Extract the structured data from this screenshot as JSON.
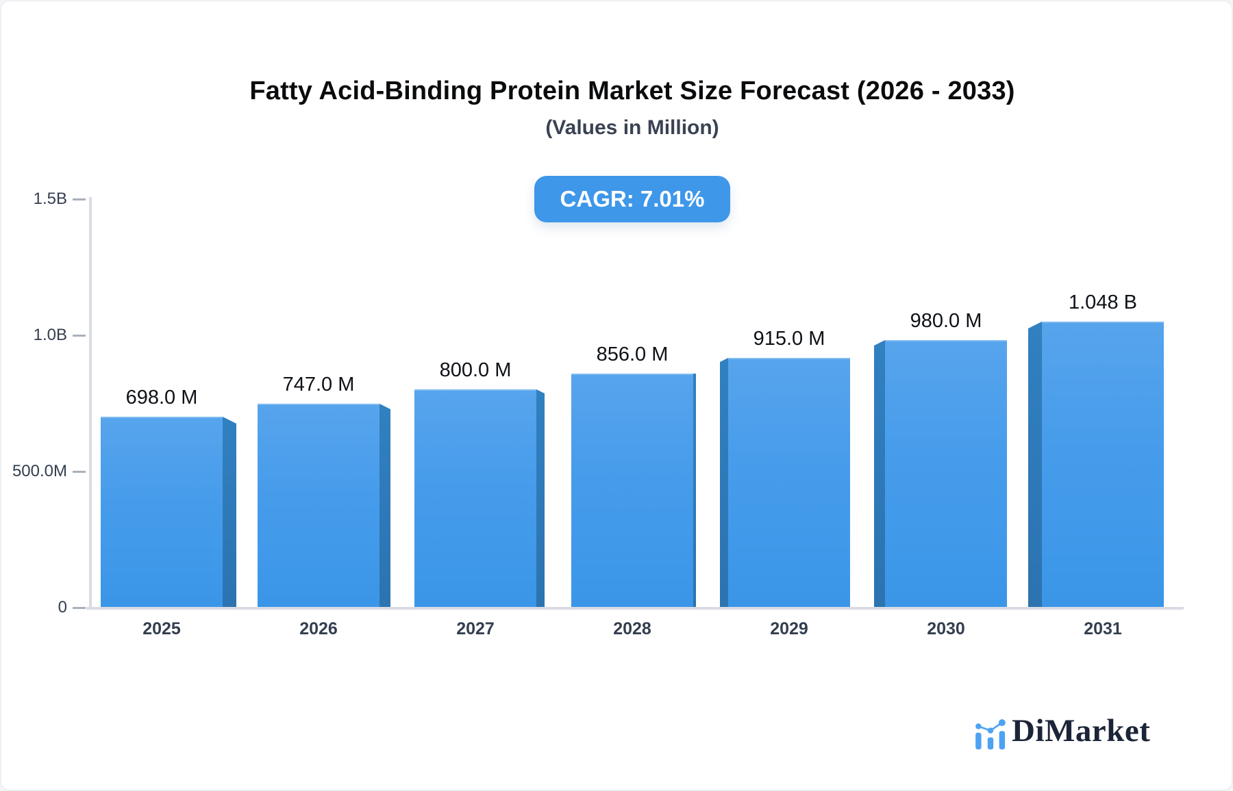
{
  "header": {
    "title": "Fatty Acid-Binding Protein Market Size Forecast (2026 - 2033)",
    "subtitle": "(Values in Million)",
    "cagr_label": "CAGR: 7.01%"
  },
  "chart_data": {
    "type": "bar",
    "title": "Fatty Acid-Binding Protein Market Size Forecast (2026 - 2033)",
    "subtitle": "(Values in Million)",
    "cagr_percent": "7.01%",
    "unit": "Million USD",
    "categories": [
      "2025",
      "2026",
      "2027",
      "2028",
      "2029",
      "2030",
      "2031"
    ],
    "values": [
      698,
      747,
      800,
      856,
      915,
      980,
      1048
    ],
    "value_labels": [
      "698.0 M",
      "747.0 M",
      "800.0 M",
      "856.0 M",
      "915.0 M",
      "980.0 M",
      "1.048 B"
    ],
    "ylim": [
      0,
      1500
    ],
    "y_ticks": [
      {
        "label": "1.5B",
        "value": 1500
      },
      {
        "label": "1.0B",
        "value": 1000
      },
      {
        "label": "500.0M",
        "value": 500
      },
      {
        "label": "0",
        "value": 0
      }
    ],
    "grid": "off",
    "legend": "none",
    "bar_style": "3d-extruded"
  },
  "colors": {
    "badge_bg": "#3e97e9",
    "badge_text": "#ffffff",
    "bar_face_top": "#57a4ec",
    "bar_face_bottom": "#3b96e8",
    "bar_side": "#2e78b7",
    "axis_line": "#d9dce2",
    "tick_dash": "#a9b0ba",
    "axis_text": "#333e4f",
    "value_text": "#0e1116",
    "title_text": "#0a0b0d",
    "subtitle_text": "#3a4253",
    "logo_navy": "#1c2538",
    "logo_blue": "#4da2f2"
  },
  "logo": {
    "name": "DiMarket",
    "icon": "mini-bar-chart-icon"
  }
}
